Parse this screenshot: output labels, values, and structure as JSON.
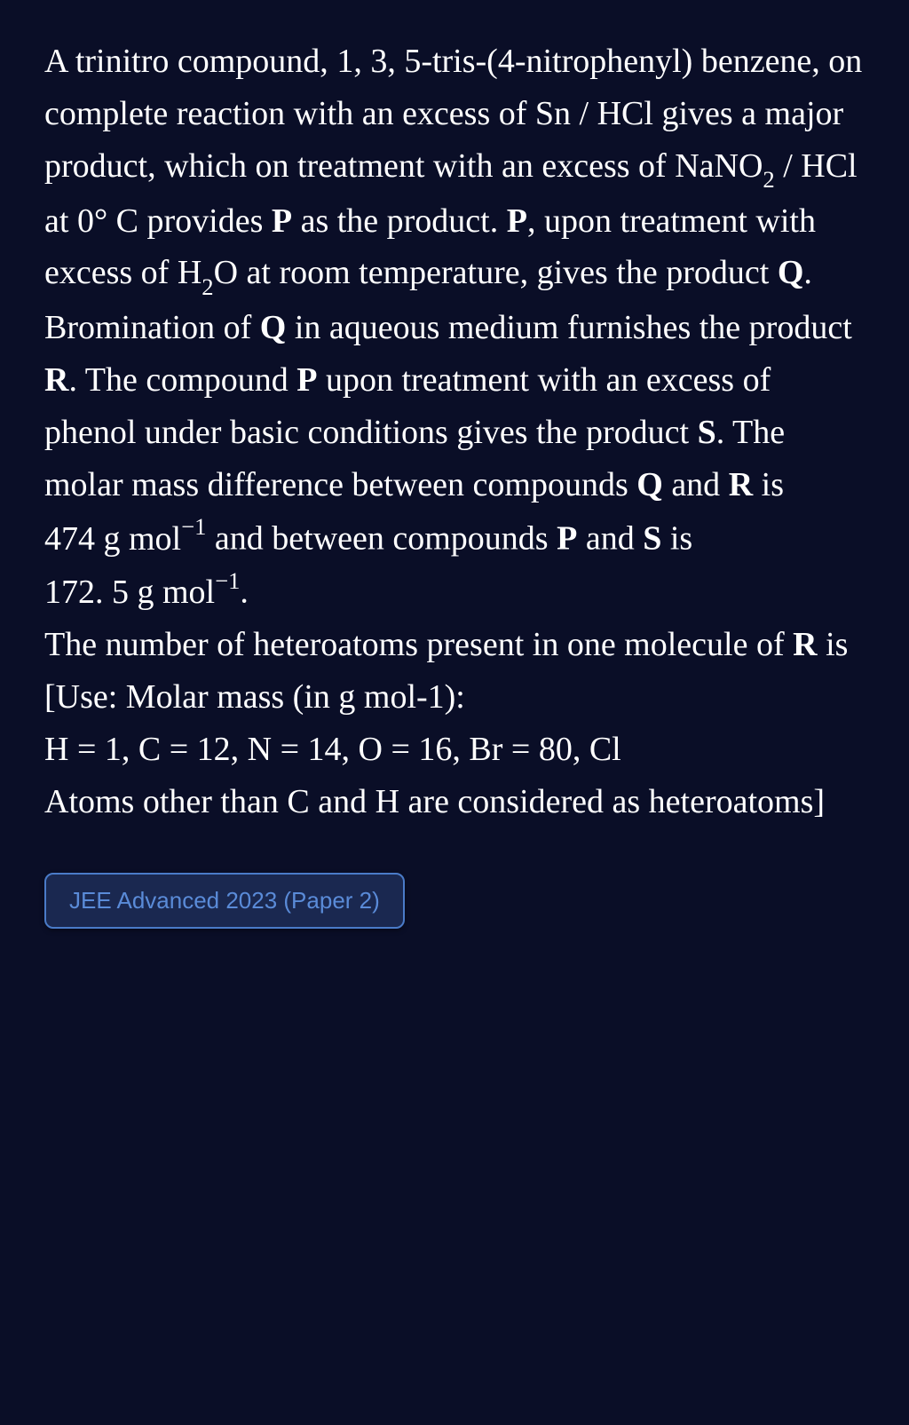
{
  "question": {
    "p1_a": "A trinitro compound, ",
    "formula_1": "1, 3, 5",
    "p1_b": "-tris-(4-nitrophenyl) benzene, on complete reaction with an excess of ",
    "sn_hcl": "Sn / HCl",
    "p1_c": " gives a major product, which on treatment with an excess of ",
    "nano2_a": "NaNO",
    "nano2_sub": "2",
    "nano2_b": " / HCl",
    "p1_d": " at ",
    "temp0": "0° C",
    "p1_e": " provides ",
    "P": "P",
    "p1_f": " as the product. ",
    "p1_g": ", upon treatment with excess of ",
    "h2o_a": "H",
    "h2o_sub": "2",
    "h2o_b": "O",
    "p1_h": " at room temperature, gives the product ",
    "Q": "Q",
    "p1_i": ". Bromination of ",
    "p1_j": " in aqueous medium furnishes the product ",
    "R": "R",
    "p1_k": ". The compound ",
    "p1_l": " upon treatment with an excess of phenol under basic conditions gives the product ",
    "S": "S",
    "p1_m": ". The molar mass difference between compounds ",
    "p1_n": " and ",
    "p1_o": " is ",
    "mass1": "474 g  mol",
    "neg1": "−1",
    "p1_p": " and between compounds ",
    "p1_q": " is ",
    "mass2": "172. 5 g  mol",
    "p1_r": ".",
    "p2_a": "The number of heteroatoms present in one molecule of ",
    "p2_b": " is [Use: Molar mass (in g mol-1):",
    "masses": "H = 1, C = 12,  N = 14, O = 16, Br = 80, Cl",
    "p2_c": " Atoms other than ",
    "C": "C",
    "H": "H",
    "p2_d": " are considered as heteroatoms]"
  },
  "badge": {
    "label": "JEE Advanced 2023 (Paper 2)"
  },
  "colors": {
    "background": "#0a0e27",
    "text": "#ffffff",
    "badge_bg": "#1a2850",
    "badge_border": "#4a7bc8",
    "badge_text": "#5a8bd8"
  }
}
